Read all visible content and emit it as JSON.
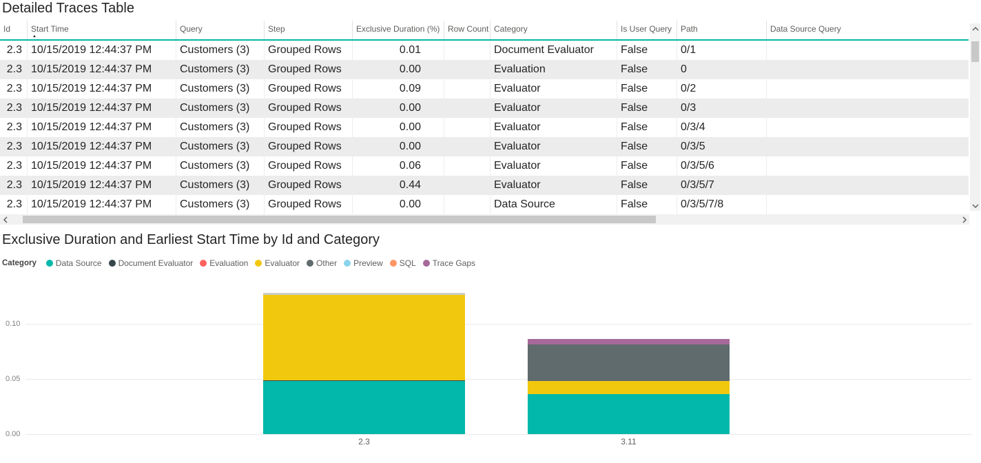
{
  "table": {
    "title": "Detailed Traces Table",
    "columns": [
      "Id",
      "Start Time",
      "Query",
      "Step",
      "Exclusive Duration (%)",
      "Row Count",
      "Category",
      "Is User Query",
      "Path",
      "Data Source Query"
    ],
    "sort": {
      "column": "Start Time",
      "column_index": 1,
      "direction": "asc"
    },
    "rows": [
      [
        "2.3",
        "10/15/2019 12:44:37 PM",
        "Customers (3)",
        "Grouped Rows",
        "0.01",
        "",
        "Document Evaluator",
        "False",
        "0/1",
        ""
      ],
      [
        "2.3",
        "10/15/2019 12:44:37 PM",
        "Customers (3)",
        "Grouped Rows",
        "0.00",
        "",
        "Evaluation",
        "False",
        "0",
        ""
      ],
      [
        "2.3",
        "10/15/2019 12:44:37 PM",
        "Customers (3)",
        "Grouped Rows",
        "0.09",
        "",
        "Evaluator",
        "False",
        "0/2",
        ""
      ],
      [
        "2.3",
        "10/15/2019 12:44:37 PM",
        "Customers (3)",
        "Grouped Rows",
        "0.00",
        "",
        "Evaluator",
        "False",
        "0/3",
        ""
      ],
      [
        "2.3",
        "10/15/2019 12:44:37 PM",
        "Customers (3)",
        "Grouped Rows",
        "0.00",
        "",
        "Evaluator",
        "False",
        "0/3/4",
        ""
      ],
      [
        "2.3",
        "10/15/2019 12:44:37 PM",
        "Customers (3)",
        "Grouped Rows",
        "0.00",
        "",
        "Evaluator",
        "False",
        "0/3/5",
        ""
      ],
      [
        "2.3",
        "10/15/2019 12:44:37 PM",
        "Customers (3)",
        "Grouped Rows",
        "0.06",
        "",
        "Evaluator",
        "False",
        "0/3/5/6",
        ""
      ],
      [
        "2.3",
        "10/15/2019 12:44:37 PM",
        "Customers (3)",
        "Grouped Rows",
        "0.44",
        "",
        "Evaluator",
        "False",
        "0/3/5/7",
        ""
      ],
      [
        "2.3",
        "10/15/2019 12:44:37 PM",
        "Customers (3)",
        "Grouped Rows",
        "0.00",
        "",
        "Data Source",
        "False",
        "0/3/5/7/8",
        ""
      ]
    ]
  },
  "chart_data": {
    "type": "bar",
    "stacked": true,
    "title": "Exclusive Duration and Earliest Start Time by Id and Category",
    "legend_title": "Category",
    "legend_position": "top-left",
    "categories": [
      "2.3",
      "3.11"
    ],
    "series": [
      {
        "name": "Data Source",
        "color": "#01B8AA",
        "values": [
          0.048,
          0.036
        ]
      },
      {
        "name": "Document Evaluator",
        "color": "#374649",
        "values": [
          0.001,
          0
        ]
      },
      {
        "name": "Evaluation",
        "color": "#FD625E",
        "values": [
          0,
          0
        ]
      },
      {
        "name": "Evaluator",
        "color": "#F2C80F",
        "values": [
          0.077,
          0.012
        ]
      },
      {
        "name": "Other",
        "color": "#5F6B6D",
        "values": [
          0,
          0.033
        ]
      },
      {
        "name": "Preview",
        "color": "#8AD4EB",
        "values": [
          0,
          0
        ]
      },
      {
        "name": "SQL",
        "color": "#FE9666",
        "values": [
          0,
          0
        ]
      },
      {
        "name": "Trace Gaps",
        "color": "#A66999",
        "values": [
          0,
          0.005
        ]
      }
    ],
    "clipped_bars": [
      {
        "category": "2.3",
        "indicator_value": 0.002,
        "color": "#C9CBCD"
      }
    ],
    "y_ticks": [
      {
        "label": "0.00",
        "value": 0.0
      },
      {
        "label": "0.05",
        "value": 0.05
      },
      {
        "label": "0.10",
        "value": 0.1
      }
    ],
    "ylim": [
      0,
      0.129
    ],
    "grid": true
  },
  "colors": {
    "accent_teal": "#01B8AA",
    "row_alt": "#ECECEC",
    "grid_line": "#E8E8E8",
    "scroll_track": "#F1F1F1",
    "scroll_thumb": "#C8C8C8"
  }
}
